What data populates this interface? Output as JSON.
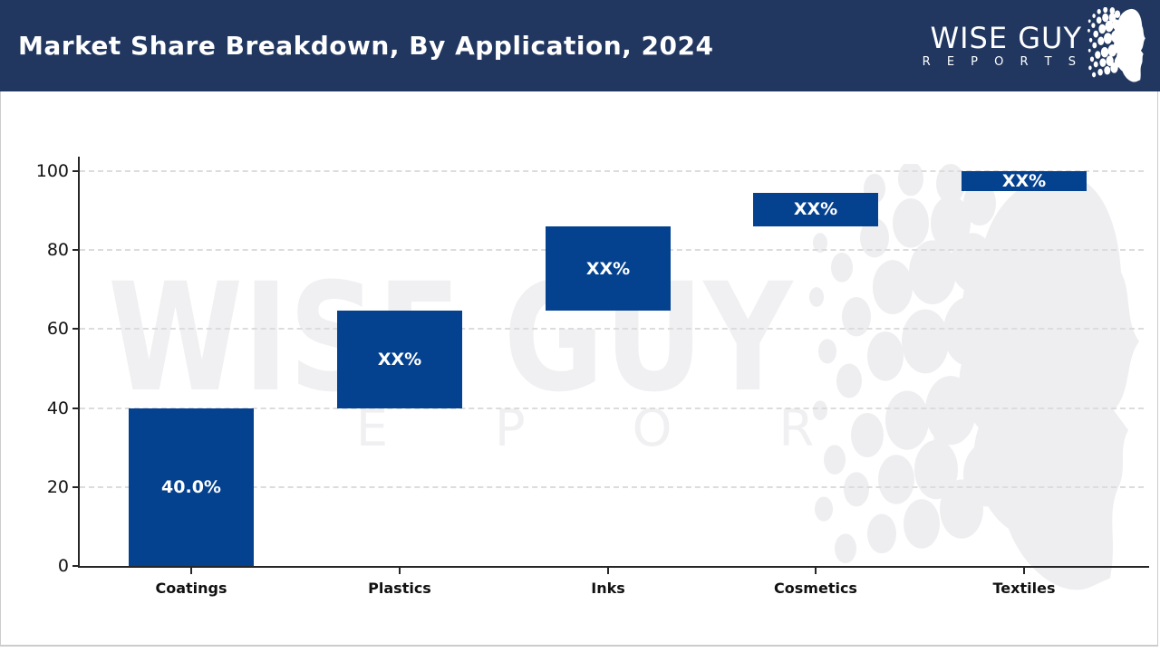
{
  "header": {
    "title": "Market Share Breakdown, By Application, 2024",
    "background_color": "#213760",
    "logo": {
      "wordmark": "WISE GUY",
      "subtext": "R E P O R T S"
    }
  },
  "watermark": {
    "wordmark": "WISE GUY",
    "subtext": "R E P O R T S"
  },
  "chart_data": {
    "type": "bar",
    "subtype": "floating-waterfall",
    "title": "Market Share Breakdown, By Application, 2024",
    "categories": [
      "Coatings",
      "Plastics",
      "Inks",
      "Cosmetics",
      "Textiles"
    ],
    "series": [
      {
        "name": "Market share (%)",
        "segments": [
          {
            "category": "Coatings",
            "start": 0,
            "end": 40,
            "label": "40.0%"
          },
          {
            "category": "Plastics",
            "start": 40,
            "end": 64.6,
            "label": "XX%"
          },
          {
            "category": "Inks",
            "start": 64.6,
            "end": 86,
            "label": "XX%"
          },
          {
            "category": "Cosmetics",
            "start": 86,
            "end": 94.5,
            "label": "XX%"
          },
          {
            "category": "Textiles",
            "start": 95,
            "end": 100,
            "label": "XX%"
          }
        ]
      }
    ],
    "xlabel": "",
    "ylabel": "",
    "ylim": [
      0,
      105
    ],
    "yticks": [
      0,
      20,
      40,
      60,
      80,
      100
    ],
    "grid": "horizontal-dashed",
    "legend": "none",
    "bar_color": "#04418f",
    "bar_label_color": "#ffffff",
    "axis_color": "#262626",
    "gridline_color": "#dcdcdc"
  }
}
